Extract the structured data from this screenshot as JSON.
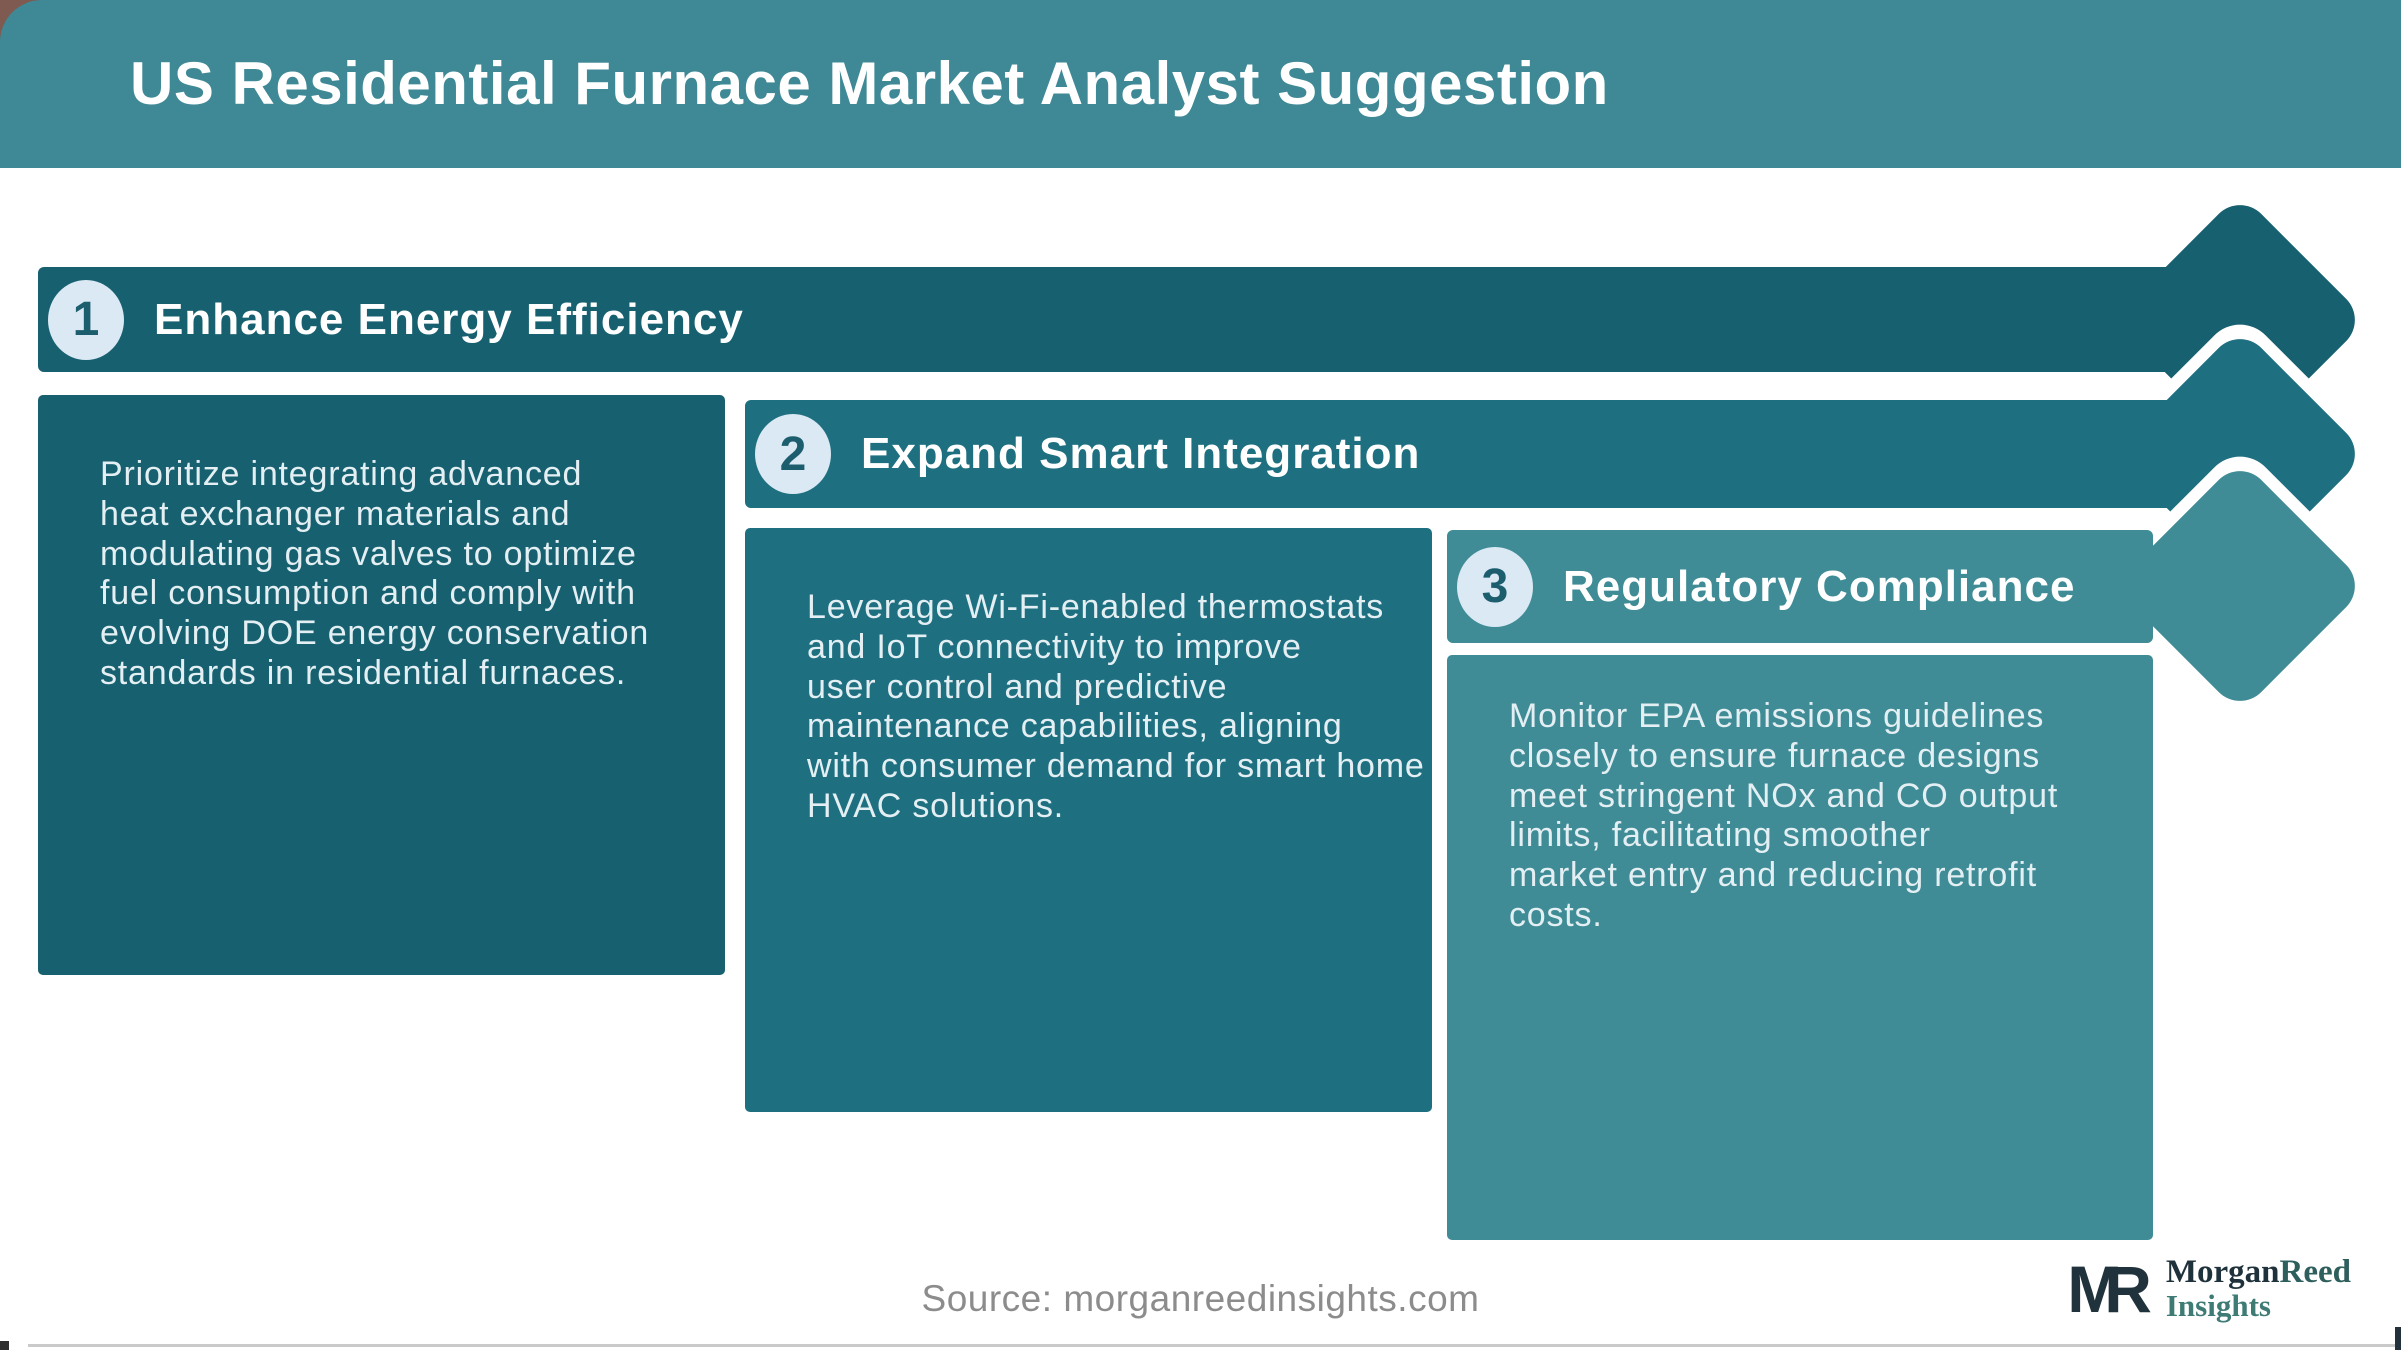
{
  "header": {
    "title": "US Residential Furnace Market Analyst Suggestion"
  },
  "steps": [
    {
      "number": "1",
      "title": "Enhance Energy Efficiency",
      "description": "Prioritize integrating advanced\nheat exchanger materials and\nmodulating gas valves to optimize\nfuel consumption and comply with\nevolving DOE energy conservation\nstandards in residential furnaces."
    },
    {
      "number": "2",
      "title": "Expand Smart Integration",
      "description": "Leverage Wi-Fi-enabled thermostats\nand IoT connectivity to improve\nuser control and predictive\nmaintenance capabilities, aligning\nwith consumer demand for smart home\nHVAC solutions."
    },
    {
      "number": "3",
      "title": "Regulatory Compliance",
      "description": "Monitor EPA emissions guidelines\nclosely to ensure furnace designs\nmeet stringent NOx and CO output\nlimits, facilitating smoother\nmarket entry and reducing retrofit\ncosts."
    }
  ],
  "footer": {
    "source": "Source: morganreedinsights.com",
    "logo": {
      "monogram_m": "M",
      "monogram_r": "R",
      "brand_primary": "Morgan",
      "brand_secondary": "Reed",
      "brand_sub": "Insights"
    }
  },
  "colors": {
    "header_bg": "#3E8995",
    "step1_fill": "#17606F",
    "step2_fill": "#1E6F80",
    "step3_fill": "#3F8C96",
    "badge_bg": "#DAE9F4",
    "badge_text": "#1D5E6E",
    "banner_title_text": "#FFFFFF",
    "body_text": "#E3EFF3",
    "source_text": "#8C8C8C",
    "logo_dark": "#20333C",
    "logo_teal": "#3E7B74"
  }
}
